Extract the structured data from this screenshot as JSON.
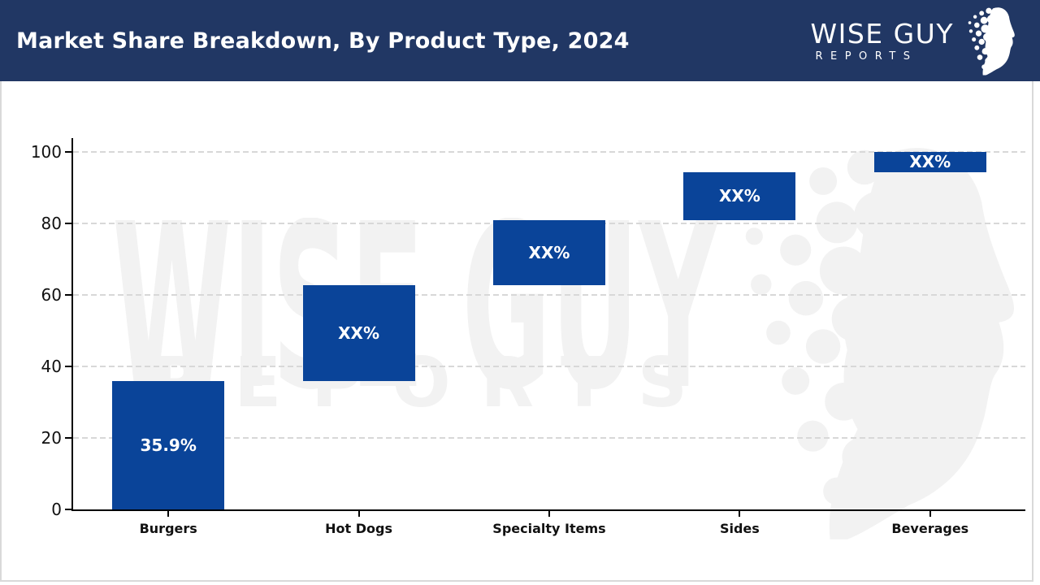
{
  "header": {
    "title": "Market Share Breakdown, By Product Type, 2024",
    "logo": {
      "line1": "WISE GUY",
      "line2": "REPORTS"
    }
  },
  "watermark": {
    "line1": "WISE GUY",
    "line2": "REPORTS"
  },
  "colors": {
    "header_bg": "#213764",
    "bar": "#0a4499",
    "grid": "#d8d8d8",
    "axis": "#000000",
    "tick_label": "#111111",
    "bar_label": "#ffffff",
    "watermark": "#f2f2f2",
    "card_border": "#d9d9d9"
  },
  "chart_data": {
    "type": "bar",
    "subtype": "waterfall-stacked",
    "title": "Market Share Breakdown, By Product Type, 2024",
    "unit": "%",
    "categories": [
      "Burgers",
      "Hot Dogs",
      "Specialty Items",
      "Sides",
      "Beverages"
    ],
    "segments": [
      {
        "category": "Burgers",
        "start": 0,
        "end": 35.9,
        "label": "35.9%"
      },
      {
        "category": "Hot Dogs",
        "start": 35.9,
        "end": 62.7,
        "label": "XX%"
      },
      {
        "category": "Specialty Items",
        "start": 62.7,
        "end": 80.9,
        "label": "XX%"
      },
      {
        "category": "Sides",
        "start": 80.9,
        "end": 94.2,
        "label": "XX%"
      },
      {
        "category": "Beverages",
        "start": 94.2,
        "end": 100.0,
        "label": "XX%"
      }
    ],
    "yticks": [
      0,
      20,
      40,
      60,
      80,
      100
    ],
    "ylim": [
      0,
      104
    ],
    "xlabel": "",
    "ylabel": "",
    "grid": "horizontal-dashed",
    "legend": "none"
  }
}
